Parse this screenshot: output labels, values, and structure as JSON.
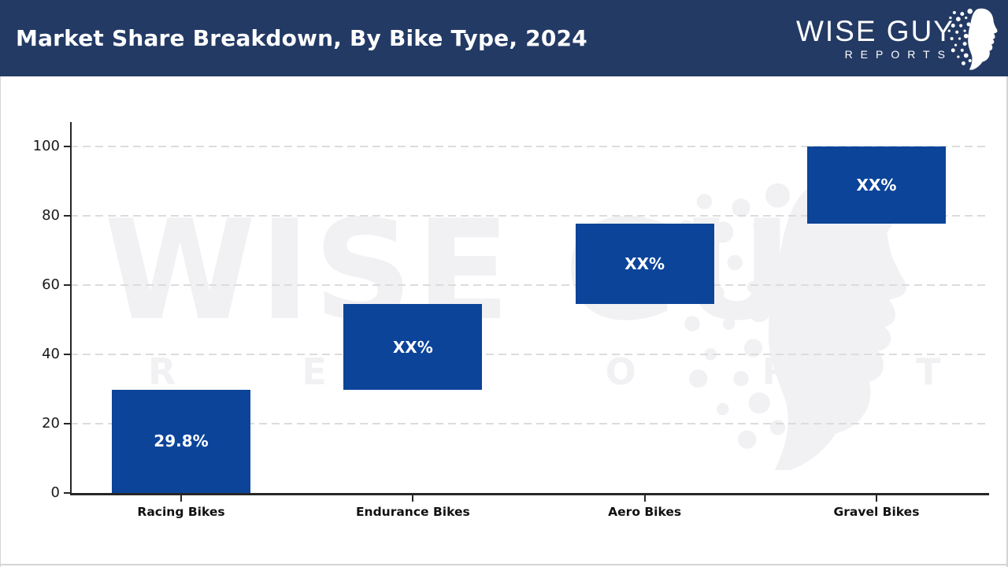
{
  "header": {
    "title": "Market Share Breakdown, By Bike Type, 2024",
    "bg_color": "#233a64",
    "logo": {
      "line1": "WISE GUY",
      "line2": "REPORTS"
    }
  },
  "watermark": {
    "line1": "WISE GUY",
    "line2": "R E P O R T S"
  },
  "chart_data": {
    "type": "bar",
    "variant": "waterfall-floating-bars",
    "title": "Market Share Breakdown, By Bike Type, 2024",
    "categories": [
      "Racing Bikes",
      "Endurance Bikes",
      "Aero Bikes",
      "Gravel Bikes"
    ],
    "segments": [
      {
        "category": "Racing Bikes",
        "start": 0,
        "end": 29.8,
        "label": "29.8%"
      },
      {
        "category": "Endurance Bikes",
        "start": 29.8,
        "end": 54.5,
        "label": "XX%"
      },
      {
        "category": "Aero Bikes",
        "start": 54.5,
        "end": 77.8,
        "label": "XX%"
      },
      {
        "category": "Gravel Bikes",
        "start": 77.8,
        "end": 100,
        "label": "XX%"
      }
    ],
    "yticks": [
      0,
      20,
      40,
      60,
      80,
      100
    ],
    "ylim": [
      0,
      107
    ],
    "xlabel": "",
    "ylabel": "",
    "grid": "horizontal dashed",
    "legend": "none",
    "bar_color": "#0b4499",
    "bar_label_color": "#ffffff",
    "axis_color": "#262626",
    "grid_color": "#dcdcdc"
  }
}
